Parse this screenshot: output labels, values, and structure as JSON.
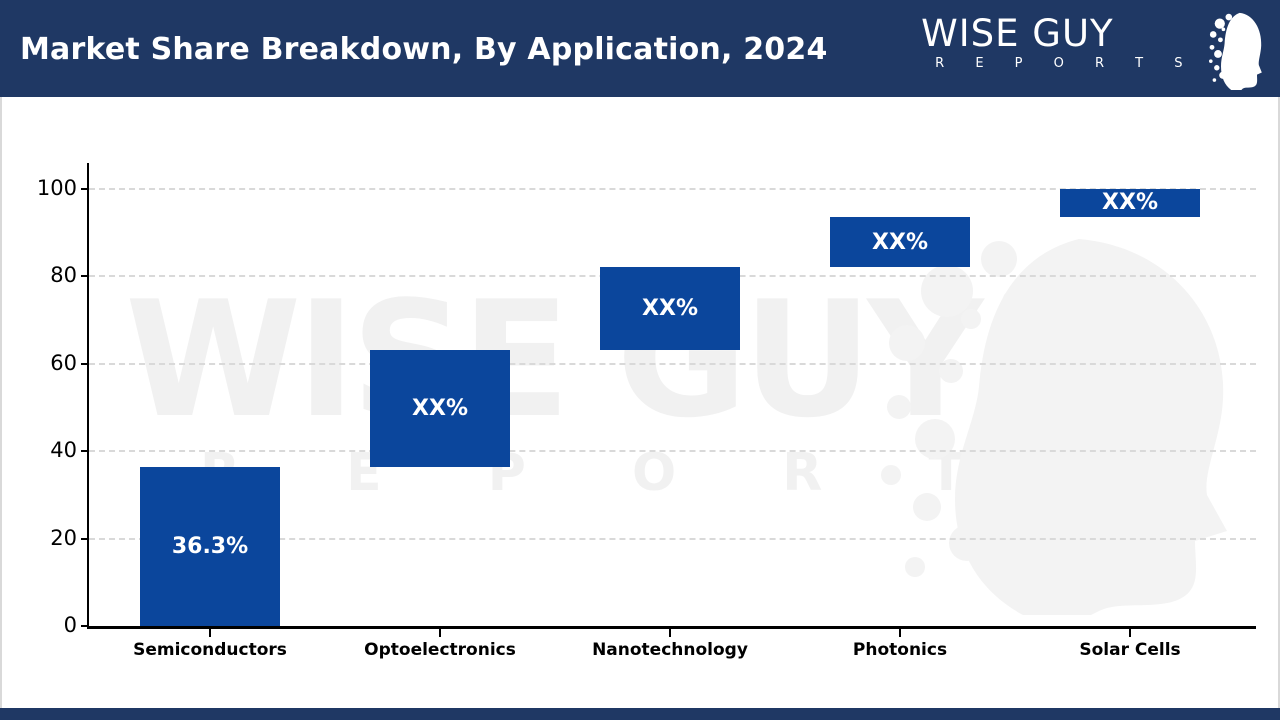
{
  "header": {
    "title": "Market Share Breakdown, By Application, 2024",
    "bg_color": "#1F3864",
    "logo": {
      "line1": "WISE GUY",
      "line2": "R E P O R T S"
    }
  },
  "watermark": {
    "line1": "WISE GUY",
    "line2": "R E P O R T S"
  },
  "footer": {
    "bg_color": "#1F3864"
  },
  "chart_data": {
    "type": "bar",
    "variant": "floating-waterfall",
    "title": "Market Share Breakdown, By Application, 2024",
    "categories": [
      "Semiconductors",
      "Optoelectronics",
      "Nanotechnology",
      "Photonics",
      "Solar Cells"
    ],
    "segments": [
      {
        "category": "Semiconductors",
        "start": 0,
        "end": 36.3,
        "label": "36.3%"
      },
      {
        "category": "Optoelectronics",
        "start": 36.3,
        "end": 63.0,
        "label": "XX%"
      },
      {
        "category": "Nanotechnology",
        "start": 63.0,
        "end": 82.0,
        "label": "XX%"
      },
      {
        "category": "Photonics",
        "start": 82.0,
        "end": 93.5,
        "label": "XX%"
      },
      {
        "category": "Solar Cells",
        "start": 93.5,
        "end": 100.0,
        "label": "XX%"
      }
    ],
    "y_ticks": [
      0,
      20,
      40,
      60,
      80,
      100
    ],
    "ylim": [
      0,
      106
    ],
    "xlabel": "",
    "ylabel": "",
    "legend": "none",
    "grid": "horizontal-dashed",
    "bar_color": "#0B469C",
    "bar_label_color": "#FFFFFF",
    "axis_color": "#000000",
    "gridline_color": "#d9d9d9"
  }
}
